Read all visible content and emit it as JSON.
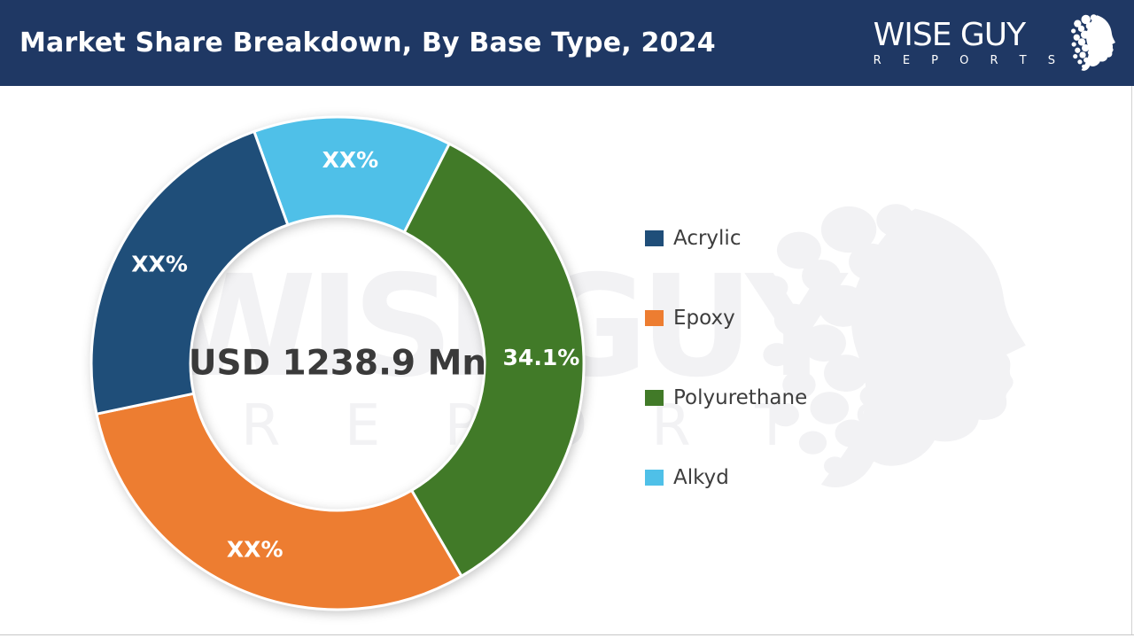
{
  "header": {
    "title": "Market Share Breakdown, By Base Type, 2024",
    "bg_color": "#1F3864",
    "logo": {
      "wordmark": "WISE GUY",
      "subtitle": "R E P O R T S"
    }
  },
  "chart_data": {
    "type": "pie",
    "subtype": "donut",
    "title": "Market Share Breakdown, By Base Type, 2024",
    "center_label": "USD 1238.9 Mn",
    "legend_position": "right",
    "series": [
      {
        "name": "Acrylic",
        "value_pct": 22.8,
        "display_label": "XX%",
        "color": "#1F4E79"
      },
      {
        "name": "Epoxy",
        "value_pct": 30.1,
        "display_label": "XX%",
        "color": "#ED7D31"
      },
      {
        "name": "Polyurethane",
        "value_pct": 34.1,
        "display_label": "34.1%",
        "color": "#417A28"
      },
      {
        "name": "Alkyd",
        "value_pct": 13.0,
        "display_label": "XX%",
        "color": "#4FC0E8"
      }
    ],
    "layout": {
      "start_angle_deg": -19.8,
      "clockwise_order": [
        "Alkyd",
        "Polyurethane",
        "Epoxy",
        "Acrylic"
      ],
      "outer_radius": 278,
      "inner_radius": 166,
      "label_radius": 230,
      "label_color": "#FFFFFF",
      "separator_color": "#FFFFFF"
    }
  },
  "watermark": {
    "wordmark": "WISEGUY",
    "subtitle": "R E P O R T S",
    "color": "#F2F2F4"
  },
  "footer": {
    "divider_color": "#C6C6C6"
  }
}
